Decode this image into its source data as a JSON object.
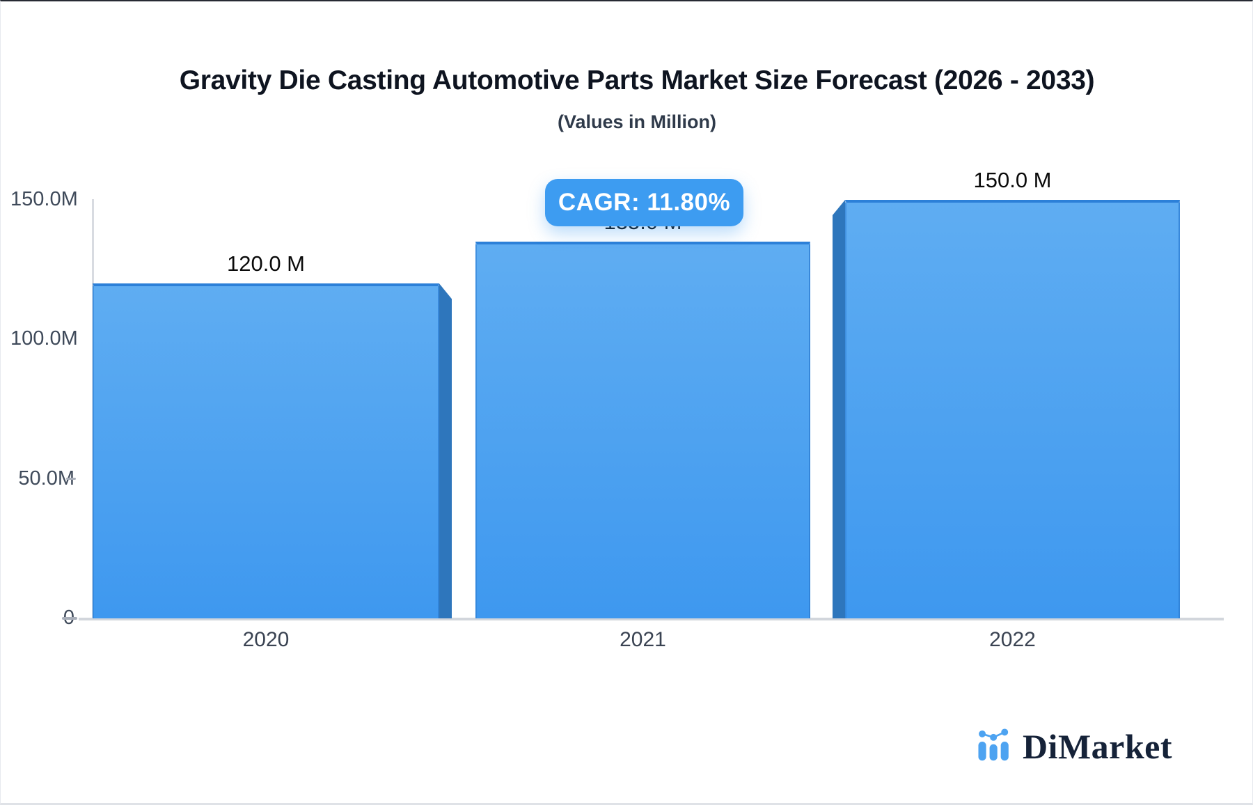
{
  "title": "Gravity Die Casting Automotive Parts Market Size Forecast (2026 - 2033)",
  "subtitle": "(Values in Million)",
  "badge": {
    "label": "CAGR: 11.80%"
  },
  "brand": {
    "name": "DiMarket",
    "icon": "bar-line-chart-logo-icon"
  },
  "colors": {
    "bar_gradient_top": "#5fadf2",
    "bar_gradient_bottom": "#3e98ef",
    "bar_side_3d": "#2e76bc",
    "bar_top_edge": "#2c80d8",
    "badge_background": "#3d9cf1",
    "badge_text": "#ffffff",
    "axis_line": "#d8dbe1",
    "axis_text": "#3f4a5a",
    "value_label_text": "#0a0a0a",
    "logo_navy": "#152238",
    "logo_blue": "#4da3f1"
  },
  "chart_data": {
    "type": "bar",
    "title": "Gravity Die Casting Automotive Parts Market Size Forecast (2026 - 2033)",
    "subtitle": "(Values in Million)",
    "categories": [
      "2020",
      "2021",
      "2022"
    ],
    "values": [
      120,
      135,
      150
    ],
    "value_labels": [
      "120.0 M",
      "135.0 M",
      "150.0 M"
    ],
    "unit": "Million (M)",
    "annotation": "CAGR: 11.80%",
    "xlabel": "",
    "ylabel": "",
    "ylim": [
      0,
      150
    ],
    "yticks": [
      {
        "value": 150,
        "label": "150.0M"
      },
      {
        "value": 100,
        "label": "100.0M"
      },
      {
        "value": 50,
        "label": "50.0M"
      },
      {
        "value": 0,
        "label": "0"
      }
    ],
    "grid": false,
    "legend": false,
    "bar_style": "3d-extruded-gradient",
    "bar_3d_sides": [
      "right",
      "none",
      "left"
    ]
  }
}
